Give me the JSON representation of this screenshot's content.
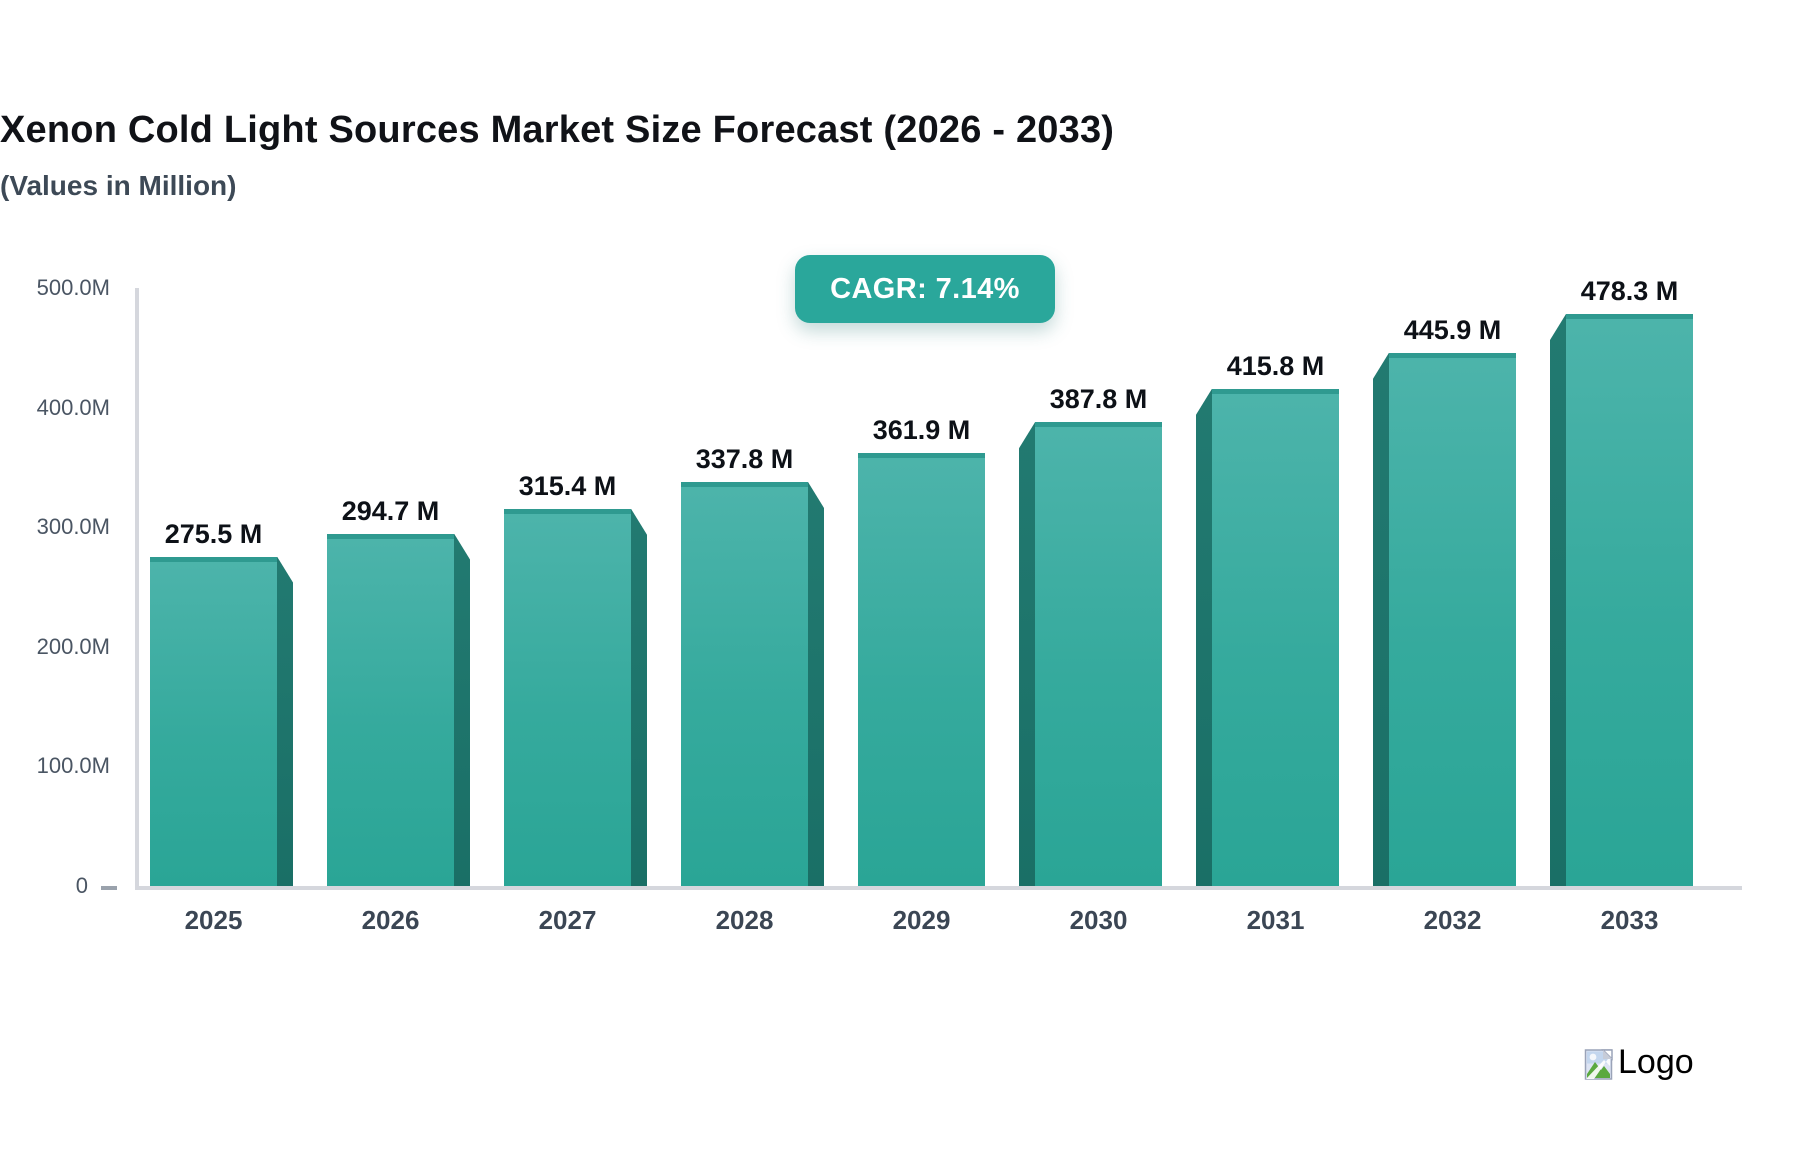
{
  "chart_data": {
    "type": "bar",
    "title": "Xenon Cold Light Sources Market Size Forecast (2026 - 2033)",
    "subtitle": "(Values in Million)",
    "cagr_badge": "CAGR: 7.14%",
    "categories": [
      "2025",
      "2026",
      "2027",
      "2028",
      "2029",
      "2030",
      "2031",
      "2032",
      "2033"
    ],
    "values": [
      275.5,
      294.7,
      315.4,
      337.8,
      361.9,
      387.8,
      415.8,
      445.9,
      478.3
    ],
    "value_labels": [
      "275.5 M",
      "294.7 M",
      "315.4 M",
      "337.8 M",
      "361.9 M",
      "387.8 M",
      "415.8 M",
      "445.9 M",
      "478.3 M"
    ],
    "y_axis": {
      "max": 500,
      "ticks": [
        {
          "label": "500.0M",
          "value": 500
        },
        {
          "label": "400.0M",
          "value": 400
        },
        {
          "label": "300.0M",
          "value": 300
        },
        {
          "label": "200.0M",
          "value": 200
        },
        {
          "label": "100.0M",
          "value": 100
        },
        {
          "label": "0",
          "value": 0,
          "dash": true
        }
      ]
    },
    "grid": false,
    "legend": null,
    "colors": {
      "bar_face_top": "#4db4ab",
      "bar_face_bottom": "#2aa596",
      "bar_lid": "#2f9a90",
      "bar_side": "#1e7a71",
      "badge_bg": "#2aa79b",
      "axis": "#d5d7dd",
      "value_text": "#0d1117",
      "tick_text": "#4a5563"
    }
  },
  "footer": {
    "logo_text": "Logo",
    "logo_icon": "broken-image-icon"
  }
}
